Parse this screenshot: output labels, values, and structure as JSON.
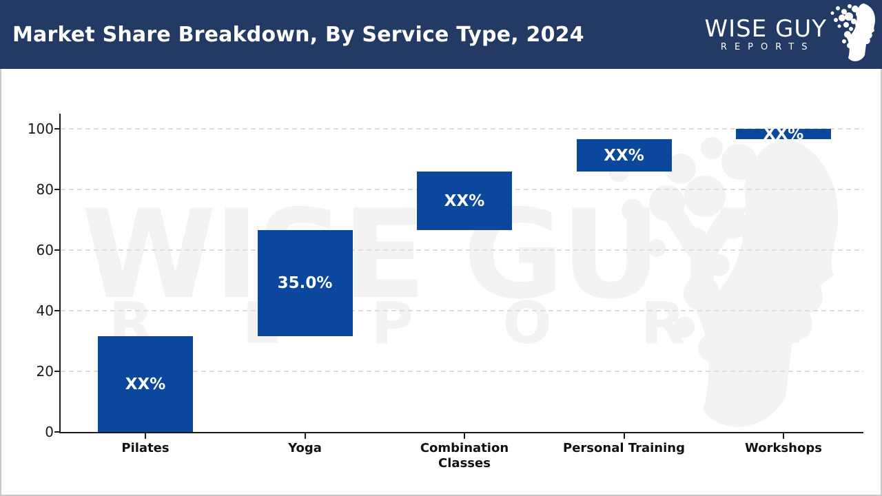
{
  "header": {
    "title": "Market Share Breakdown, By Service Type, 2024",
    "logo": {
      "primary": "WISE GUY",
      "secondary": "REPORTS"
    }
  },
  "watermark": {
    "primary": "WISE GUY",
    "secondary": "R E P O R T S"
  },
  "colors": {
    "header_bg": "#223a64",
    "bar": "#0b479d",
    "bar_label": "#ffffff",
    "axis": "#1c1c1c",
    "grid": "#dcdcdc",
    "tick_label": "#1a1a1a",
    "category_label": "#111111",
    "frame_border": "#c9c9c9",
    "watermark": "#f3f3f3"
  },
  "chart_data": {
    "type": "bar",
    "subtype": "waterfall-stacked-segments",
    "title": "Market Share Breakdown, By Service Type, 2024",
    "categories": [
      "Pilates",
      "Yoga",
      "Combination Classes",
      "Personal Training",
      "Workshops"
    ],
    "bars": [
      {
        "category": "Pilates",
        "label": "XX%",
        "start": 0,
        "end": 31.5
      },
      {
        "category": "Yoga",
        "label": "35.0%",
        "start": 31.5,
        "end": 66.5,
        "value": 35.0
      },
      {
        "category": "Combination Classes",
        "label": "XX%",
        "start": 66.5,
        "end": 86
      },
      {
        "category": "Personal Training",
        "label": "XX%",
        "start": 86,
        "end": 96.5
      },
      {
        "category": "Workshops",
        "label": "XX%",
        "start": 96.5,
        "end": 100
      }
    ],
    "yticks": [
      0,
      20,
      40,
      60,
      80,
      100
    ],
    "ylim": [
      0,
      105
    ],
    "xlabel": "",
    "ylabel": "",
    "grid": "horizontal-dashed",
    "legend": "none"
  }
}
